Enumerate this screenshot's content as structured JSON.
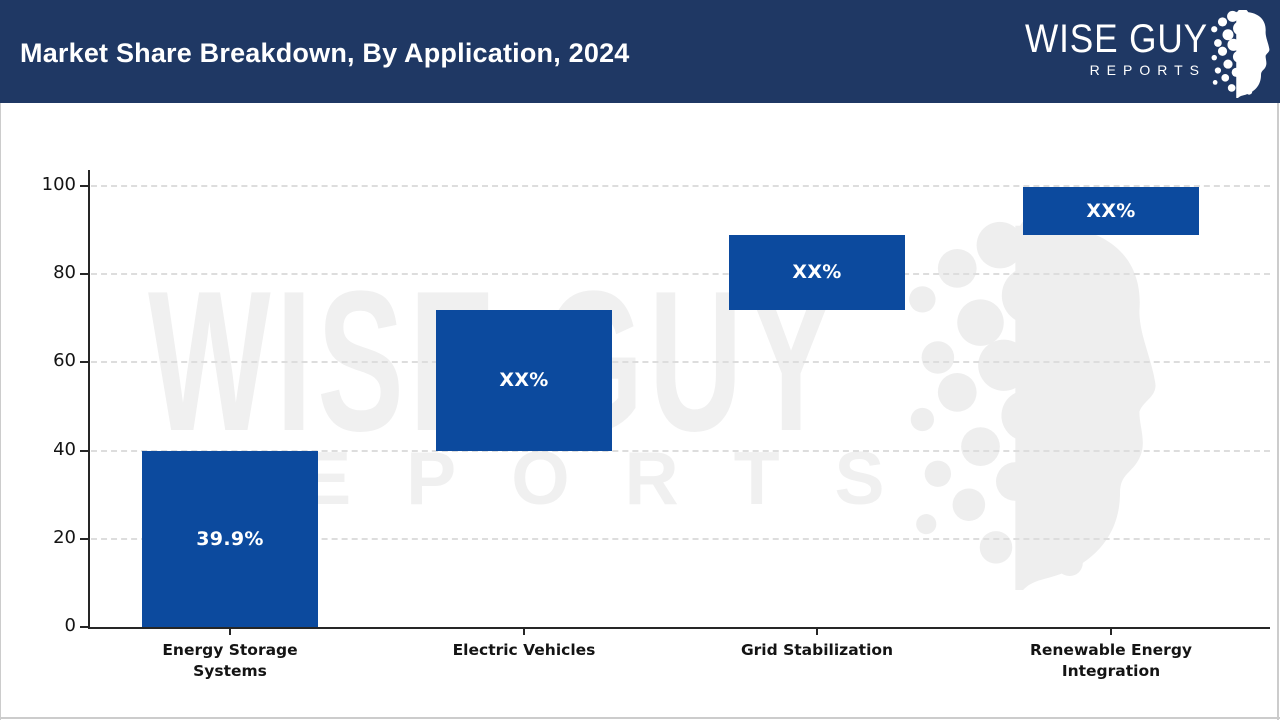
{
  "header": {
    "title": "Market Share Breakdown, By Application, 2024",
    "brand": {
      "name_line": "WISE GUY",
      "sub_line": "REPORTS"
    }
  },
  "watermark": {
    "line1": "WISE GUY",
    "line2": "REPORTS"
  },
  "chart_data": {
    "type": "bar",
    "variant": "waterfall",
    "title": "Market Share Breakdown, By Application, 2024",
    "categories": [
      "Energy Storage Systems",
      "Electric Vehicles",
      "Grid Stabilization",
      "Renewable Energy Integration"
    ],
    "tick_label_lines": [
      [
        "Energy Storage",
        "Systems"
      ],
      [
        "Electric Vehicles"
      ],
      [
        "Grid Stabilization"
      ],
      [
        "Renewable Energy",
        "Integration"
      ]
    ],
    "segments": [
      {
        "category": "Energy Storage Systems",
        "start": 0,
        "end": 39.9,
        "value": 39.9,
        "label": "39.9%"
      },
      {
        "category": "Electric Vehicles",
        "start": 39.9,
        "end": 71.9,
        "value": 32.0,
        "label": "XX%"
      },
      {
        "category": "Grid Stabilization",
        "start": 71.9,
        "end": 88.9,
        "value": 17.0,
        "label": "XX%"
      },
      {
        "category": "Renewable Energy Integration",
        "start": 88.9,
        "end": 99.8,
        "value": 10.9,
        "label": "XX%"
      }
    ],
    "ylim": [
      0,
      100
    ],
    "yticks": [
      0,
      20,
      40,
      60,
      80,
      100
    ],
    "grid": {
      "horizontal": true,
      "style": "dashed"
    },
    "legend": null,
    "colors": {
      "bar": "#0c4a9e",
      "bar_label": "#ffffff",
      "header_bg": "#1f3864",
      "grid_line": "#dddddd",
      "axis": "#262626",
      "watermark": "#f0f0f0"
    }
  }
}
